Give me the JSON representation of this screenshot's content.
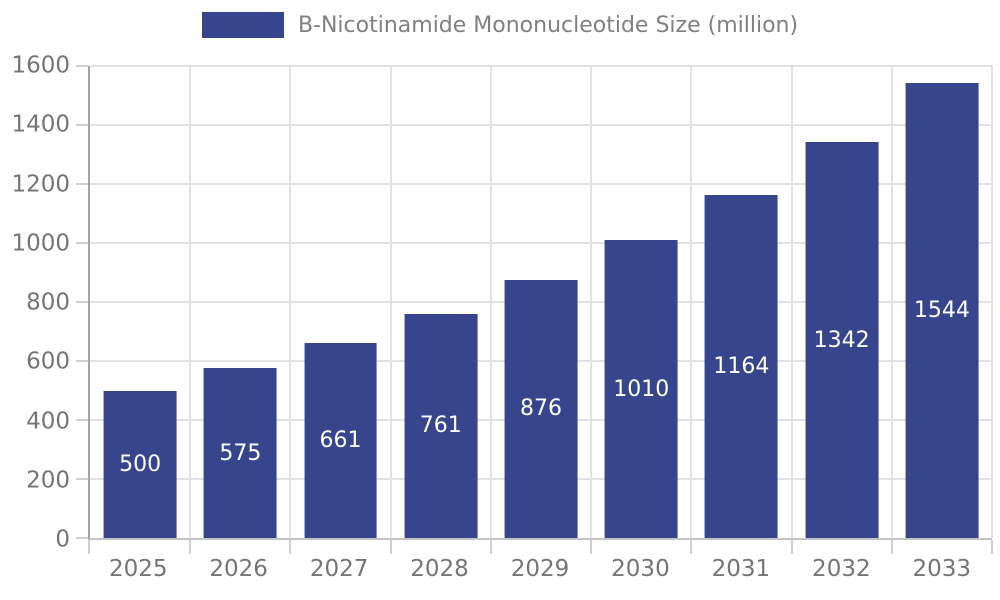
{
  "chart_data": {
    "type": "bar",
    "title": "B-Nicotinamide Mononucleotide Size (million)",
    "legend_entries": [
      "B-Nicotinamide Mononucleotide Size (million)"
    ],
    "legend_position": "top-center",
    "categories": [
      "2025",
      "2026",
      "2027",
      "2028",
      "2029",
      "2030",
      "2031",
      "2032",
      "2033"
    ],
    "values": [
      500,
      575,
      661,
      761,
      876,
      1010,
      1164,
      1342,
      1544
    ],
    "xlabel": "",
    "ylabel": "",
    "ylim": [
      0,
      1600
    ],
    "ytick_step": 200,
    "yticks": [
      0,
      200,
      400,
      600,
      800,
      1000,
      1200,
      1400,
      1600
    ],
    "grid": true,
    "bar_label_position": "center",
    "colors": {
      "bar": "#36458C",
      "bar_label": "#FFFFFF",
      "grid": "#E2E2E2",
      "axis_left": "#A3A3A3",
      "axis_bottom": "#C4C4C4",
      "tick": "#CFCFCF",
      "tick_label": "#757575",
      "legend_text": "#808080",
      "background": "#FFFFFF"
    }
  }
}
